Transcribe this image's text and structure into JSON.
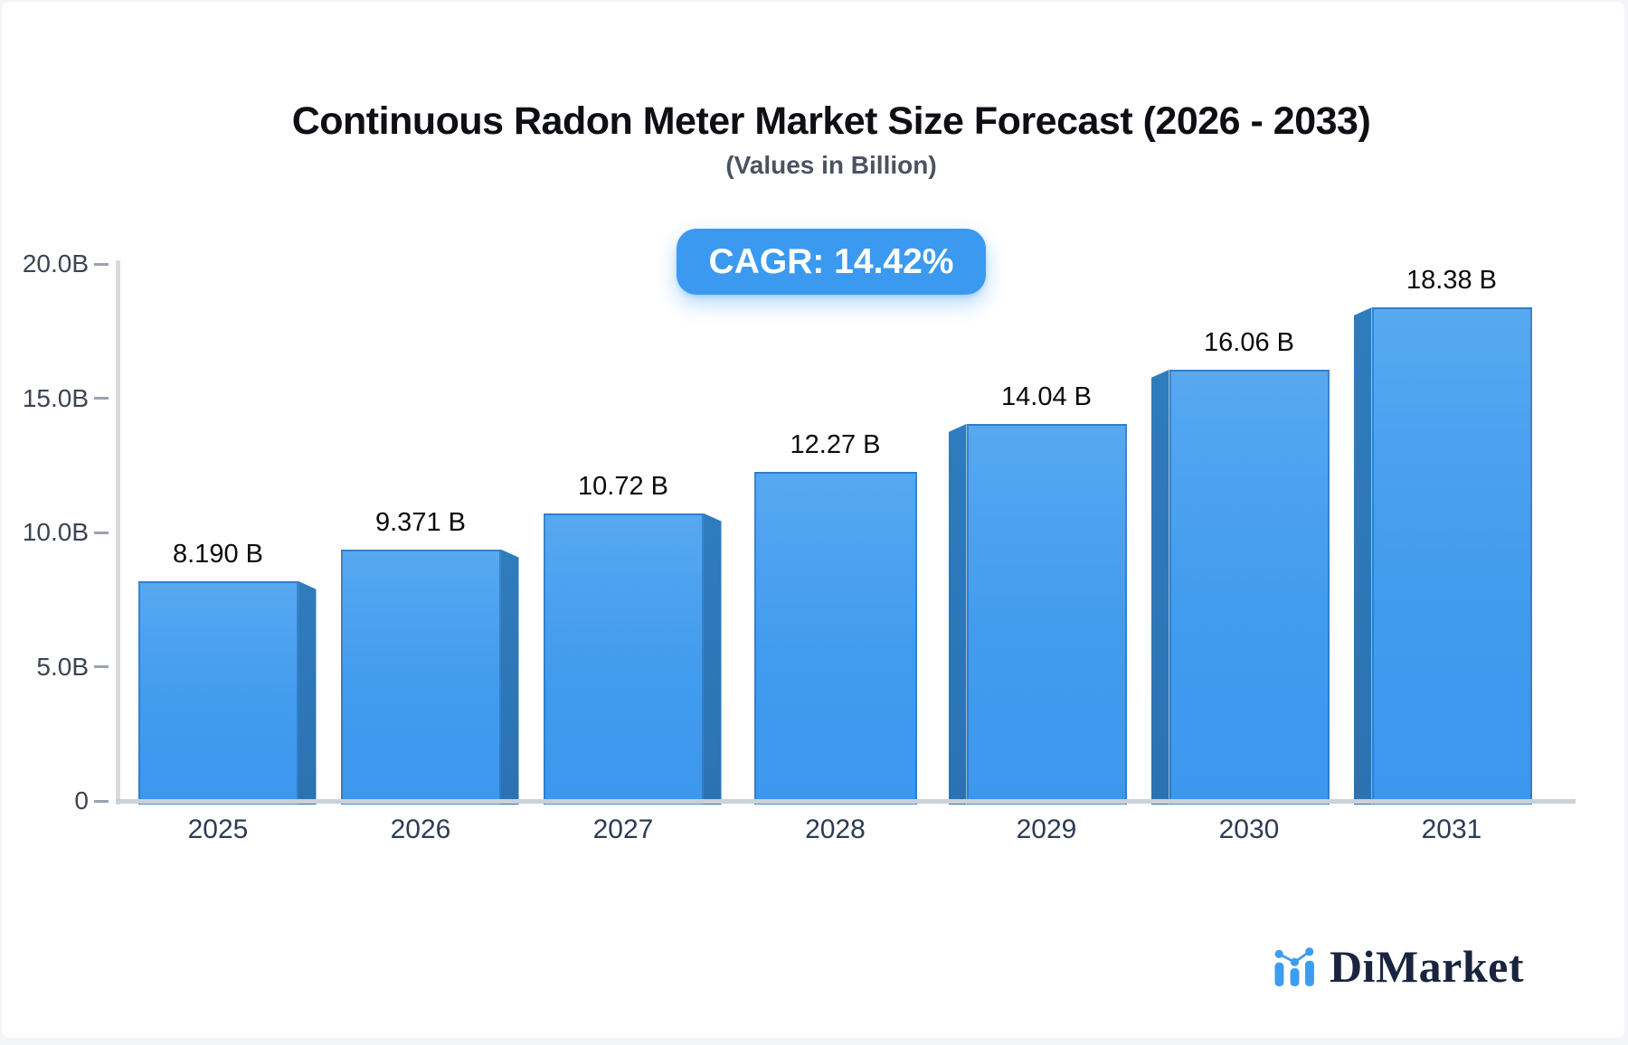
{
  "header": {
    "title": "Continuous Radon Meter Market Size Forecast (2026 - 2033)",
    "subtitle": "(Values in Billion)",
    "cagr_label": "CAGR: 14.42%"
  },
  "chart_data": {
    "type": "bar",
    "title": "Continuous Radon Meter Market Size Forecast (2026 - 2033)",
    "subtitle": "(Values in Billion)",
    "cagr": "14.42%",
    "categories": [
      "2025",
      "2026",
      "2027",
      "2028",
      "2029",
      "2030",
      "2031"
    ],
    "values": [
      8.19,
      9.371,
      10.72,
      12.27,
      14.04,
      16.06,
      18.38
    ],
    "value_labels": [
      "8.190 B",
      "9.371 B",
      "10.72 B",
      "12.27 B",
      "14.04 B",
      "16.06 B",
      "18.38 B"
    ],
    "ylim": [
      0,
      20
    ],
    "yticks": [
      {
        "v": 20,
        "label": "20.0B"
      },
      {
        "v": 15,
        "label": "15.0B"
      },
      {
        "v": 10,
        "label": "10.0B"
      },
      {
        "v": 5,
        "label": "5.0B"
      },
      {
        "v": 0,
        "label": "0"
      }
    ],
    "grid": false,
    "legend": false,
    "colors": {
      "bar_front_top": "#57a8f1",
      "bar_front_bottom": "#3c97ee",
      "bar_border": "#3a84cc",
      "bar_side": "#2d76b6",
      "badge_bg": "#3b9af0",
      "axis_line": "#ccd1d9"
    }
  },
  "footer": {
    "brand": "DiMarket",
    "logo_icon": "mini-bar-chart-icon"
  }
}
